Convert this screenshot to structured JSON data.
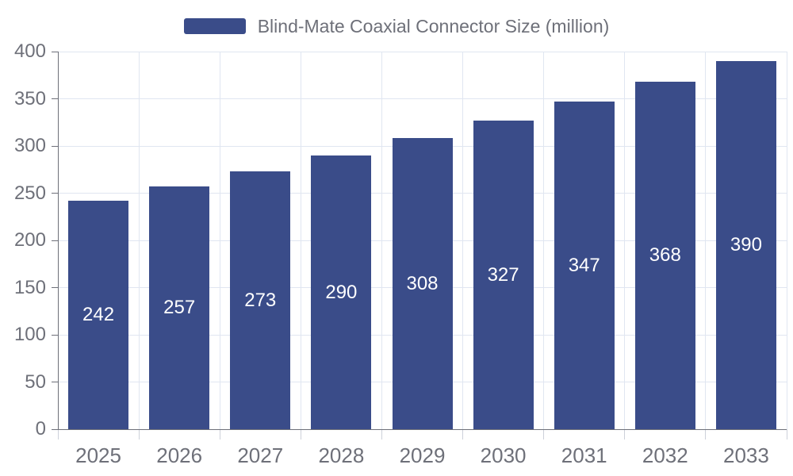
{
  "chart_data": {
    "type": "bar",
    "title": "",
    "categories": [
      "2025",
      "2026",
      "2027",
      "2028",
      "2029",
      "2030",
      "2031",
      "2032",
      "2033"
    ],
    "series": [
      {
        "name": "Blind-Mate Coaxial Connector Size (million)",
        "values": [
          242,
          257,
          273,
          290,
          308,
          327,
          347,
          368,
          390
        ]
      }
    ],
    "xlabel": "",
    "ylabel": "",
    "ylim": [
      0,
      400
    ],
    "ytick_step": 50,
    "grid": true,
    "legend_position": "top",
    "bar_labels_visible": true,
    "colors": {
      "bar": "#3A4C89",
      "bar_label": "#FFFFFF",
      "axis_text": "#6E7079",
      "grid_line": "#E0E6F1",
      "axis_line": "#6E7079",
      "x_tick": "#CDD1DA"
    }
  }
}
